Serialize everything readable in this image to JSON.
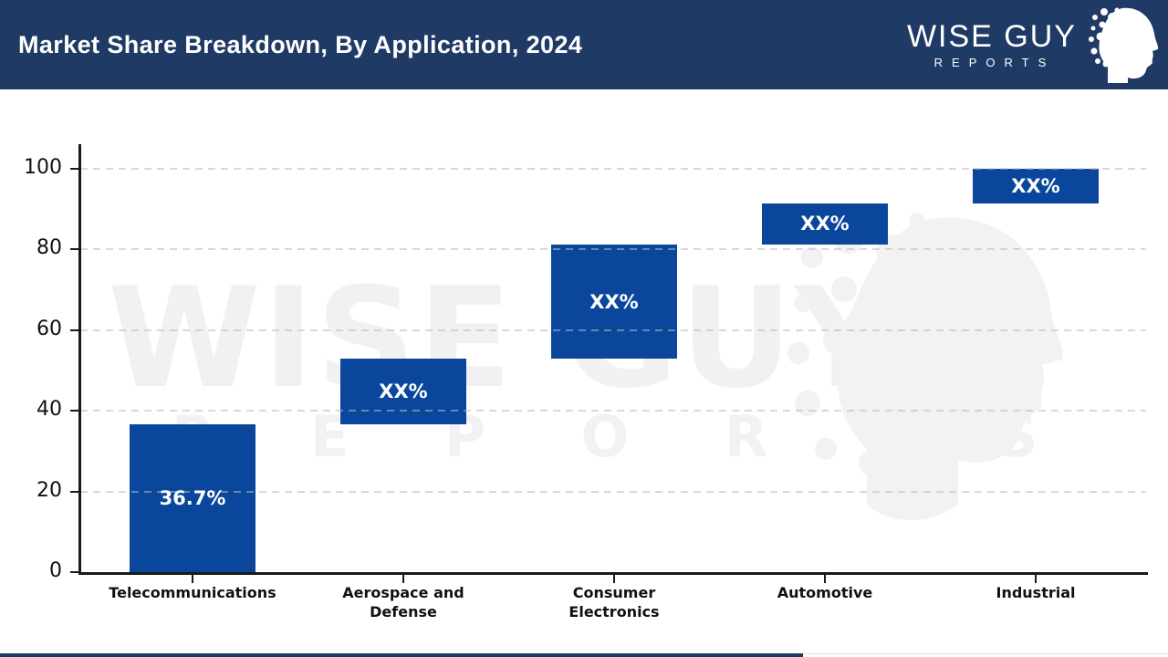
{
  "header": {
    "title": "Market Share Breakdown, By Application, 2024",
    "bg_color": "#203a66",
    "logo": {
      "line1": "WISE GUY",
      "line2": "REPORTS",
      "icon": "dotted-head-profile-icon"
    }
  },
  "watermark": {
    "line1": "WISE GUY",
    "line2": "REPORTS",
    "icon": "dotted-head-profile-watermark"
  },
  "footer": {
    "accent_color": "#203a66"
  },
  "chart_data": {
    "type": "bar",
    "subtype": "floating-waterfall",
    "title": "Market Share Breakdown, By Application, 2024",
    "xlabel": "",
    "ylabel": "",
    "ylim": [
      0,
      106
    ],
    "y_ticks": [
      0,
      20,
      40,
      60,
      80,
      100
    ],
    "grid": "horizontal-dashed",
    "legend": "none",
    "bar_color": "#0a479c",
    "categories": [
      [
        "Telecommunications"
      ],
      [
        "Aerospace and",
        "Defense"
      ],
      [
        "Consumer",
        "Electronics"
      ],
      [
        "Automotive"
      ],
      [
        "Industrial"
      ]
    ],
    "segments": [
      {
        "category": "Telecommunications",
        "start": 0,
        "end": 36.7,
        "value": 36.7,
        "label": "36.7%"
      },
      {
        "category": "Aerospace and Defense",
        "start": 36.7,
        "end": 52.9,
        "value": 16.2,
        "label": "XX%"
      },
      {
        "category": "Consumer Electronics",
        "start": 52.9,
        "end": 81.2,
        "value": 28.3,
        "label": "XX%"
      },
      {
        "category": "Automotive",
        "start": 81.2,
        "end": 91.5,
        "value": 10.3,
        "label": "XX%"
      },
      {
        "category": "Industrial",
        "start": 91.5,
        "end": 100,
        "value": 8.5,
        "label": "XX%"
      }
    ]
  }
}
